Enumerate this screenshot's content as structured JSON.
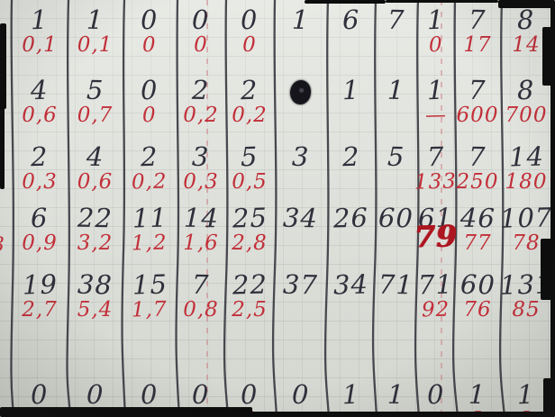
{
  "colors": {
    "paper": "#dfe2db",
    "ink_dark": "#302f3b",
    "ink_red": "#c22f39",
    "divider_line": "#3e3d45"
  },
  "fragments": [
    "3",
    "2"
  ],
  "table": {
    "rows": [
      {
        "cells": [
          {
            "top": "1",
            "bottom": "0,1"
          },
          {
            "top": "1",
            "bottom": "0,1"
          },
          {
            "top": "0",
            "bottom": "0"
          },
          {
            "top": "0",
            "bottom": "0"
          },
          {
            "top": "0",
            "bottom": "0"
          },
          {
            "top": "1"
          },
          {
            "top": "6"
          },
          {
            "top": "7"
          },
          {
            "top": "1",
            "bottom": "0"
          },
          {
            "top": "7",
            "bottom": "17"
          },
          {
            "top": "8",
            "bottom": "14"
          }
        ]
      },
      {
        "cells": [
          {
            "top": "4",
            "bottom": "0,6"
          },
          {
            "top": "5",
            "bottom": "0,7"
          },
          {
            "top": "0",
            "bottom": "0"
          },
          {
            "top": "2",
            "bottom": "0,2"
          },
          {
            "top": "2",
            "bottom": "0,2"
          },
          {
            "blob": true
          },
          {
            "top": "1"
          },
          {
            "top": "1"
          },
          {
            "top": "1",
            "bottom": "—"
          },
          {
            "top": "7",
            "bottom": "600"
          },
          {
            "top": "8",
            "bottom": "700"
          }
        ]
      },
      {
        "cells": [
          {
            "top": "2",
            "bottom": "0,3"
          },
          {
            "top": "4",
            "bottom": "0,6"
          },
          {
            "top": "2",
            "bottom": "0,2"
          },
          {
            "top": "3",
            "bottom": "0,3"
          },
          {
            "top": "5",
            "bottom": "0,5"
          },
          {
            "top": "3"
          },
          {
            "top": "2"
          },
          {
            "top": "5"
          },
          {
            "top": "7",
            "bottom": "133"
          },
          {
            "top": "7",
            "bottom": "250"
          },
          {
            "top": "14",
            "bottom": "180"
          }
        ]
      },
      {
        "cells": [
          {
            "top": "6",
            "bottom": "0,9"
          },
          {
            "top": "22",
            "bottom": "3,2"
          },
          {
            "top": "11",
            "bottom": "1,2"
          },
          {
            "top": "14",
            "bottom": "1,6"
          },
          {
            "top": "25",
            "bottom": "2,8"
          },
          {
            "top": "34"
          },
          {
            "top": "26"
          },
          {
            "top": "60"
          },
          {
            "top": "61",
            "bottom": "79",
            "emphasis": true
          },
          {
            "top": "46",
            "bottom": "77"
          },
          {
            "top": "107",
            "bottom": "78"
          }
        ]
      },
      {
        "cells": [
          {
            "top": "19",
            "bottom": "2,7"
          },
          {
            "top": "38",
            "bottom": "5,4"
          },
          {
            "top": "15",
            "bottom": "1,7"
          },
          {
            "top": "7",
            "bottom": "0,8"
          },
          {
            "top": "22",
            "bottom": "2,5"
          },
          {
            "top": "37"
          },
          {
            "top": "34"
          },
          {
            "top": "71"
          },
          {
            "top": "71",
            "bottom": "92"
          },
          {
            "top": "60",
            "bottom": "76"
          },
          {
            "top": "131",
            "bottom": "85"
          }
        ]
      },
      {
        "cells": [
          {
            "top": "0"
          },
          {
            "top": "0"
          },
          {
            "top": "0"
          },
          {
            "top": "0"
          },
          {
            "top": "0",
            "peek": true
          },
          {
            "top": "0"
          },
          {
            "top": "1"
          },
          {
            "top": "1"
          },
          {
            "top": "0"
          },
          {
            "top": "1",
            "peek": true
          },
          {
            "top": "1",
            "peek": true
          }
        ]
      }
    ]
  }
}
